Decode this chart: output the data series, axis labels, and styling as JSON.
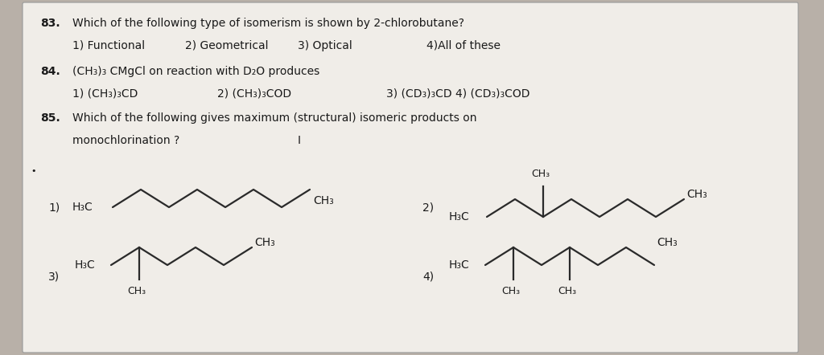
{
  "bg_color": "#b8b0a8",
  "panel_color": "#f0ede8",
  "text_color": "#1a1a1a",
  "q83_num": "83.",
  "q83_text": "Which of the following type of isomerism is shown by 2-chlorobutane?",
  "q83_opt1": "1) Functional",
  "q83_opt2": "2) Geometrical",
  "q83_opt3": "3) Optical",
  "q83_opt4": "4)All of these",
  "q84_num": "84.",
  "q84_text": "(CH₃)₃ CMgCl on reaction with D₂O produces",
  "q84_opt1": "1) (CH₃)₃CD",
  "q84_opt2": "2) (CH₃)₃COD",
  "q84_opt3": "3) (CD₃)₃CD 4) (CD₃)₃COD",
  "q85_num": "85.",
  "q85_text": "Which of the following gives maximum (structural) isomeric products on",
  "q85_text2": "monochlorination ?",
  "mol_lw": 1.6,
  "mol_color": "#2a2a2a",
  "font_size": 10.0,
  "font_size_mol": 10.0
}
